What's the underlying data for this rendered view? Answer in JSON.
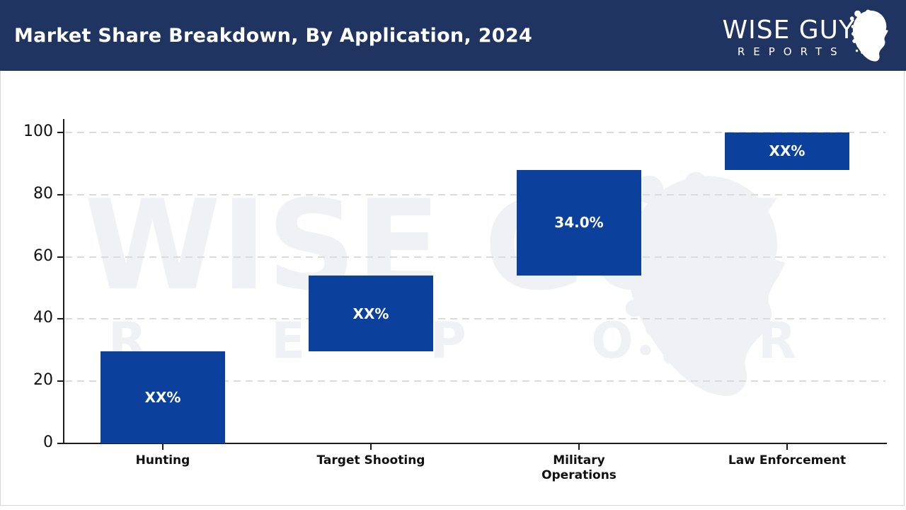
{
  "header": {
    "title": "Market Share Breakdown, By Application, 2024",
    "logo": {
      "name": "WISE GUY",
      "sub": "REPORTS"
    }
  },
  "watermark": {
    "name": "WISE GUY",
    "sub": "R E P O R T S"
  },
  "chart_data": {
    "type": "bar",
    "subtype": "waterfall",
    "title": "Market Share Breakdown, By Application, 2024",
    "categories": [
      "Hunting",
      "Target Shooting",
      "Military\nOperations",
      "Law Enforcement"
    ],
    "segments": [
      {
        "category": "Hunting",
        "start": 0,
        "end": 29.5,
        "value": 29.5,
        "label": "XX%"
      },
      {
        "category": "Target Shooting",
        "start": 29.5,
        "end": 54,
        "value": 24.5,
        "label": "XX%"
      },
      {
        "category": "Military Operations",
        "start": 54,
        "end": 88,
        "value": 34.0,
        "label": "34.0%"
      },
      {
        "category": "Law Enforcement",
        "start": 88,
        "end": 100,
        "value": 12.0,
        "label": "XX%"
      }
    ],
    "ylim": [
      0,
      100
    ],
    "yticks": [
      0,
      20,
      40,
      60,
      80,
      100
    ],
    "grid": "horizontal-dashed",
    "legend": "none",
    "bar_color": "#0b409c",
    "bar_label_color": "#ffffff"
  },
  "colors": {
    "header_bg": "#203461",
    "bar_blue": "#0b409c",
    "grid": "#dbdbdb",
    "axis": "#1c1c1c",
    "watermark": "#f0f1f4",
    "card_border": "#d6d6d6"
  }
}
